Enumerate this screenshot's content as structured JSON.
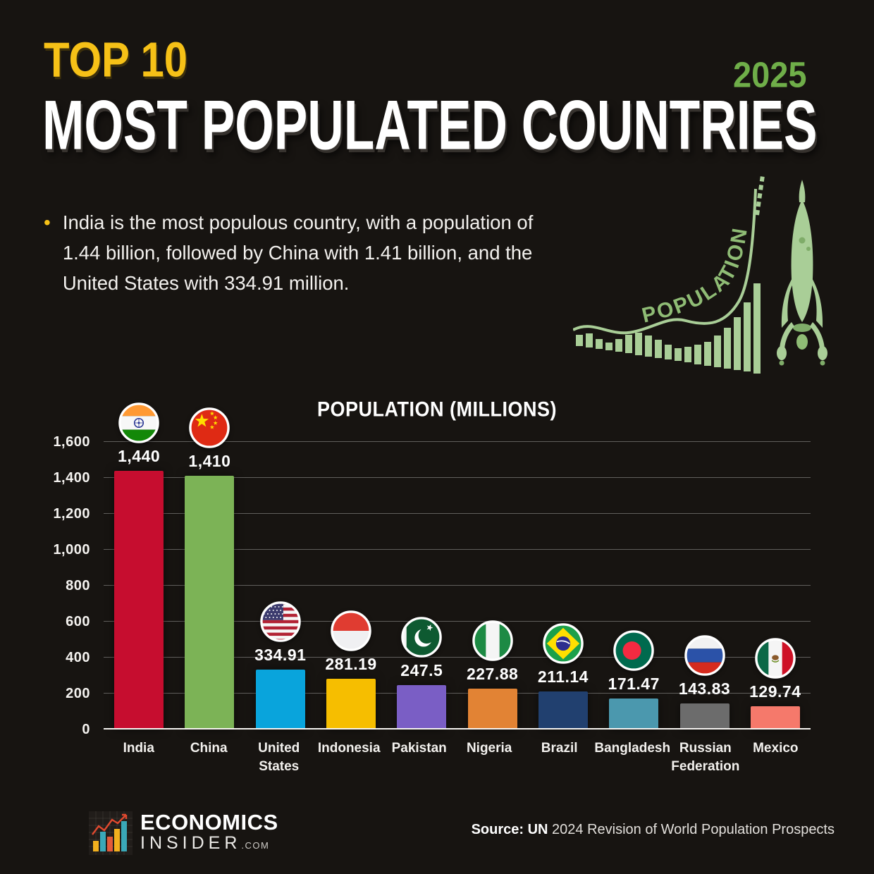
{
  "header": {
    "kicker": "TOP 10",
    "year": "2025",
    "title": "MOST POPULATED COUNTRIES"
  },
  "intro": {
    "bullet": "•",
    "text": "India is the most populous country, with a population of 1.44 billion, followed by China with 1.41 billion, and the United States with 334.91 million."
  },
  "decoration": {
    "label": "POPULATION"
  },
  "chart_data": {
    "type": "bar",
    "title": "POPULATION (MILLIONS)",
    "categories": [
      "India",
      "China",
      "United States",
      "Indonesia",
      "Pakistan",
      "Nigeria",
      "Brazil",
      "Bangladesh",
      "Russian Federation",
      "Mexico"
    ],
    "values": [
      1440,
      1410,
      334.91,
      281.19,
      247.5,
      227.88,
      211.14,
      171.47,
      143.83,
      129.74
    ],
    "value_labels": [
      "1,440",
      "1,410",
      "334.91",
      "281.19",
      "247.5",
      "227.88",
      "211.14",
      "171.47",
      "143.83",
      "129.74"
    ],
    "bar_colors": [
      "#C60D2F",
      "#7CB356",
      "#09A4DC",
      "#F6BE00",
      "#7A5EC5",
      "#E28334",
      "#21406F",
      "#4B98AE",
      "#6C6C6C",
      "#F5796B"
    ],
    "flag_icons": [
      "india-flag-icon",
      "china-flag-icon",
      "united-states-flag-icon",
      "indonesia-flag-icon",
      "pakistan-flag-icon",
      "nigeria-flag-icon",
      "brazil-flag-icon",
      "bangladesh-flag-icon",
      "russia-flag-icon",
      "mexico-flag-icon"
    ],
    "xlabel": "",
    "ylabel": "",
    "ylim": [
      0,
      1600
    ],
    "yticks": [
      "0",
      "200",
      "400",
      "600",
      "800",
      "1,000",
      "1,200",
      "1,400",
      "1,600"
    ],
    "grid": true,
    "legend": false
  },
  "palette": {
    "background": "#171411",
    "kicker": "#F6C117",
    "year": "#6FAE49",
    "decoration_green": "#A9CE97",
    "grid": "rgba(255,255,255,0.32)",
    "baseline": "#F5F3F0"
  },
  "footer": {
    "brand_line1": "ECONOMICS",
    "brand_line2": "INSIDER",
    "brand_suffix": ".COM",
    "source_label": "Source: UN",
    "source_text": " 2024 Revision of World Population Prospects"
  }
}
